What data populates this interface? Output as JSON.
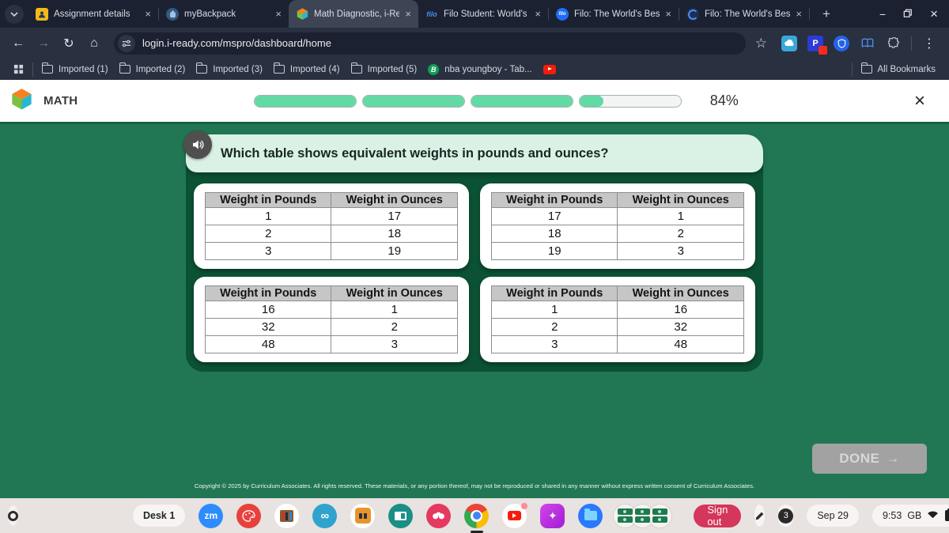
{
  "glyphs": {
    "close": "×",
    "minimize": "−",
    "plus": "+",
    "back": "←",
    "forward": "→",
    "reload": "↻",
    "home": "⌂",
    "star": "☆",
    "menu": "⋮",
    "arrow_right": "→",
    "infinity": "∞",
    "sparkle": "✦",
    "p_ext": "P",
    "filo": "filo",
    "b_badge": "B",
    "zm": "zm"
  },
  "browser": {
    "tabs": [
      {
        "title": "Assignment details"
      },
      {
        "title": "myBackpack"
      },
      {
        "title": "Math Diagnostic, i-Rea"
      },
      {
        "title": "Filo Student: World's C"
      },
      {
        "title": "Filo: The World's Best"
      },
      {
        "title": "Filo: The World's Best"
      }
    ],
    "nav": {
      "url": "login.i-ready.com/mspro/dashboard/home"
    },
    "bookmarks": {
      "items": [
        "Imported (1)",
        "Imported (2)",
        "Imported (3)",
        "Imported (4)",
        "Imported (5)",
        "nba youngboy - Tab..."
      ],
      "all_label": "All Bookmarks"
    }
  },
  "header": {
    "subject": "MATH",
    "percent": "84%",
    "progress_segments": [
      100,
      100,
      100,
      24
    ]
  },
  "quiz": {
    "question": "Which table shows equivalent weights in pounds and ounces?",
    "answers": [
      {
        "headers": [
          "Weight in Pounds",
          "Weight in Ounces"
        ],
        "rows": [
          [
            "1",
            "17"
          ],
          [
            "2",
            "18"
          ],
          [
            "3",
            "19"
          ]
        ]
      },
      {
        "headers": [
          "Weight in Pounds",
          "Weight in Ounces"
        ],
        "rows": [
          [
            "17",
            "1"
          ],
          [
            "18",
            "2"
          ],
          [
            "19",
            "3"
          ]
        ]
      },
      {
        "headers": [
          "Weight in Pounds",
          "Weight in Ounces"
        ],
        "rows": [
          [
            "16",
            "1"
          ],
          [
            "32",
            "2"
          ],
          [
            "48",
            "3"
          ]
        ]
      },
      {
        "headers": [
          "Weight in Pounds",
          "Weight in Ounces"
        ],
        "rows": [
          [
            "1",
            "16"
          ],
          [
            "2",
            "32"
          ],
          [
            "3",
            "48"
          ]
        ]
      }
    ],
    "done_label": "DONE",
    "copyright": "Copyright © 2025 by Curriculum Associates. All rights reserved. These materials, or any portion thereof, may not be reproduced or shared in any manner without express written consent of Curriculum Associates."
  },
  "shelf": {
    "desk": "Desk 1",
    "sign_out": "Sign out",
    "badge": "3",
    "date": "Sep 29",
    "time": "9:53",
    "region": "GB"
  }
}
